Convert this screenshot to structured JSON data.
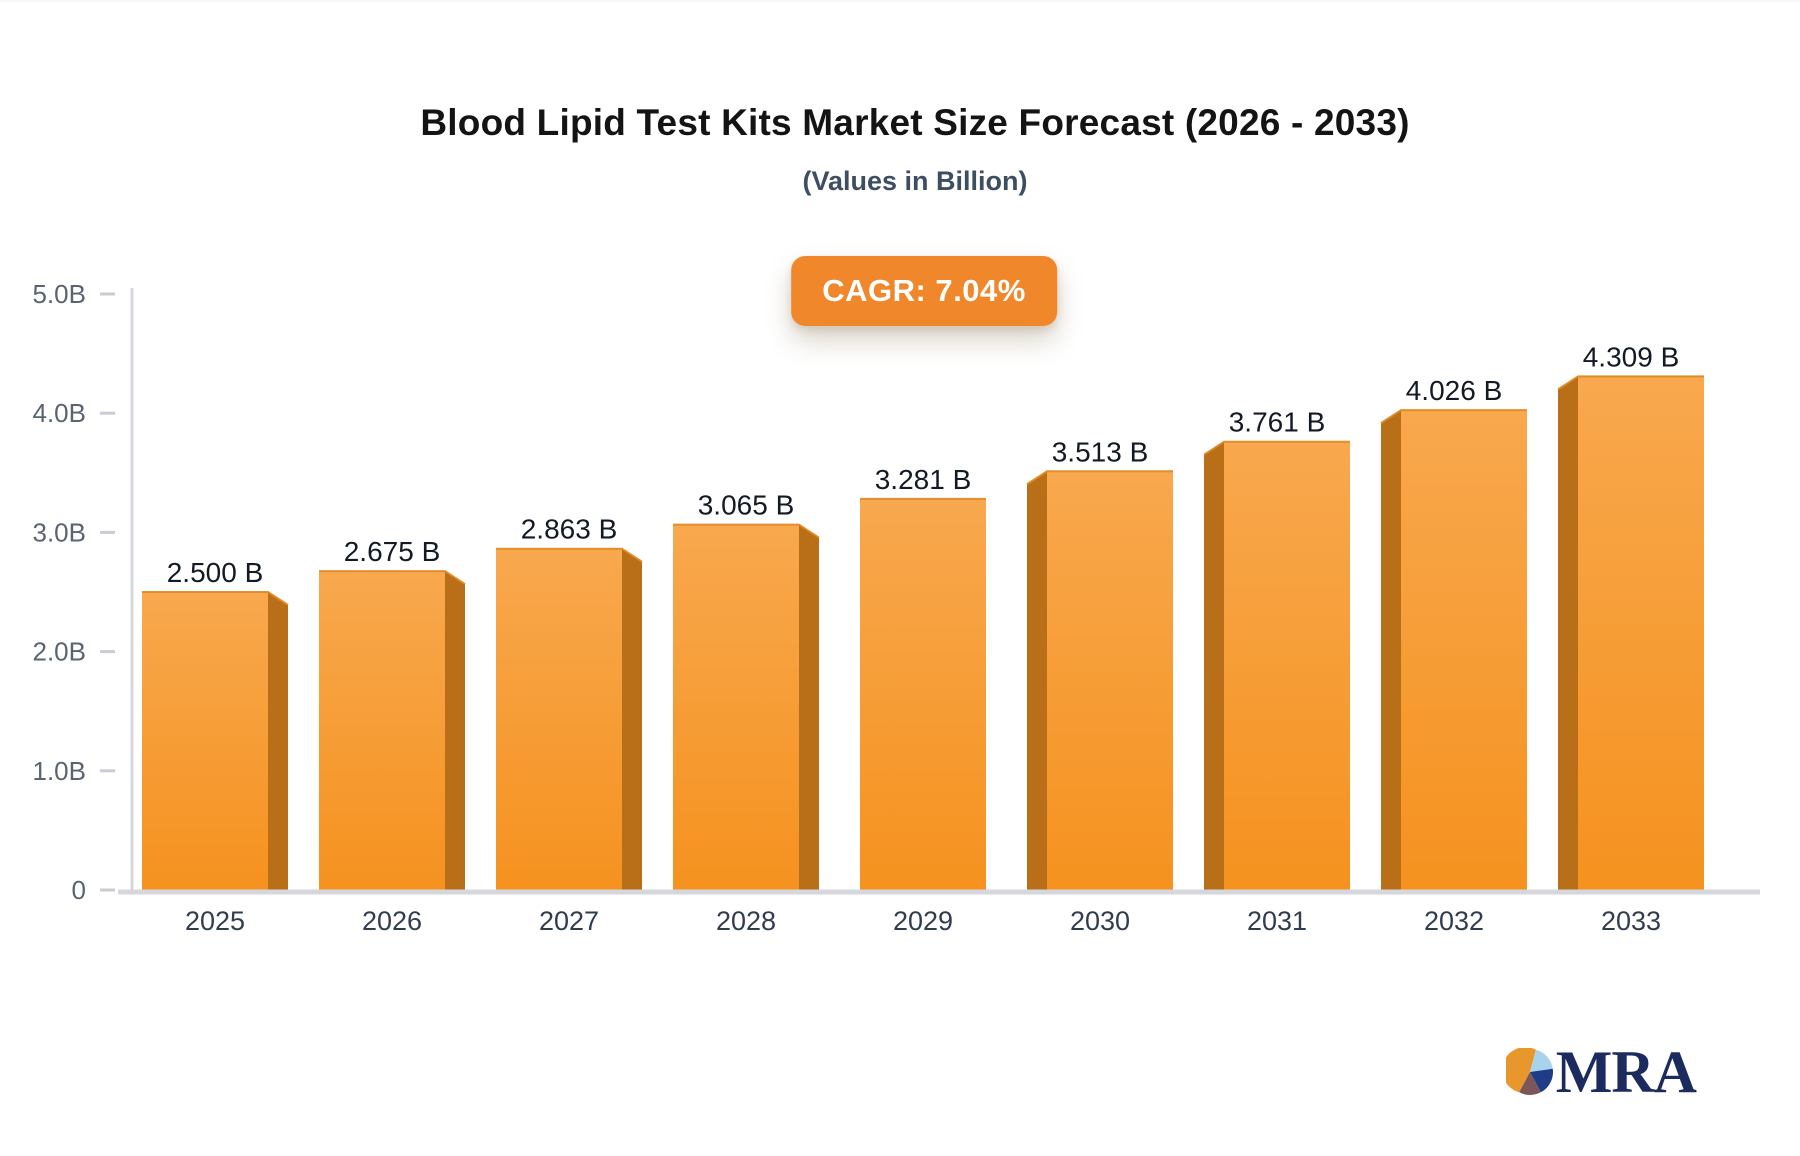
{
  "page": {
    "title": "Blood Lipid Test Kits Market Size Forecast (2026 - 2033)",
    "subtitle": "(Values in Billion)",
    "cagr_label": "CAGR: 7.04%",
    "logo_text": "MRA"
  },
  "colors": {
    "bar_face_top": "#f8a84e",
    "bar_face_bottom": "#f5921f",
    "bar_face_edge": "#e0861f",
    "bar_flank": "#b96f17",
    "badge_bg": "#f0872b",
    "axis_line": "#d5d7dc",
    "tick_dash": "#c9ccd2",
    "y_tick_text": "#5a6470",
    "x_tick_text": "#313d4f",
    "value_label_text": "#131a26",
    "logo_orange": "#e8972c",
    "logo_lightblue": "#a9d3ed",
    "logo_navy": "#1f3c88",
    "logo_maroon": "#7d565a",
    "logo_text_navy": "#1b2b5e"
  },
  "chart_data": {
    "type": "bar",
    "title": "Blood Lipid Test Kits Market Size Forecast (2026 - 2033)",
    "subtitle": "(Values in Billion)",
    "cagr": "CAGR: 7.04%",
    "categories": [
      "2025",
      "2026",
      "2027",
      "2028",
      "2029",
      "2030",
      "2031",
      "2032",
      "2033"
    ],
    "values": [
      2.5,
      2.675,
      2.863,
      3.065,
      3.281,
      3.513,
      3.761,
      4.026,
      4.309
    ],
    "value_labels": [
      "2.500 B",
      "2.675 B",
      "2.863 B",
      "3.065 B",
      "3.281 B",
      "3.513 B",
      "3.761 B",
      "4.026 B",
      "4.309 B"
    ],
    "y_ticks": [
      {
        "label": "5.0B",
        "value": 5.0
      },
      {
        "label": "4.0B",
        "value": 4.0
      },
      {
        "label": "3.0B",
        "value": 3.0
      },
      {
        "label": "2.0B",
        "value": 2.0
      },
      {
        "label": "1.0B",
        "value": 1.0
      },
      {
        "label": "0",
        "value": 0.0
      }
    ],
    "ylim": [
      0,
      5
    ],
    "xlabel": "",
    "ylabel": "",
    "grid": false,
    "legend": false,
    "bar_style": "3d-pseudo, depth flank toward outer edges, center bar flat"
  }
}
